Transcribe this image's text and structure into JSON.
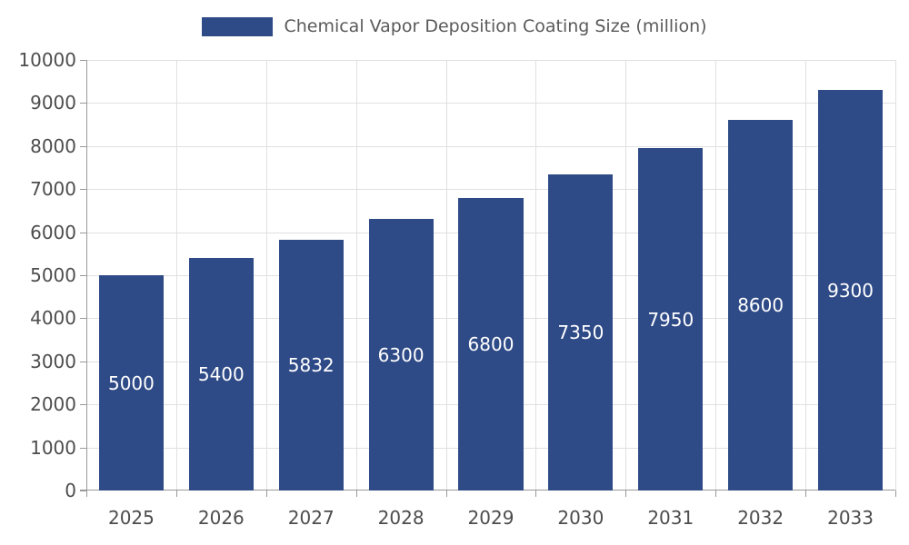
{
  "legend": {
    "label": "Chemical Vapor Deposition Coating Size (million)"
  },
  "colors": {
    "bar": "#2f4b87",
    "grid": "#e0e0e0",
    "axis": "#999999",
    "tick_text": "#4d4d4d",
    "legend_text": "#5a5a5a",
    "bar_label": "#ffffff",
    "background": "#ffffff"
  },
  "chart_data": {
    "type": "bar",
    "title": "Chemical Vapor Deposition Coating Size (million)",
    "categories": [
      "2025",
      "2026",
      "2027",
      "2028",
      "2029",
      "2030",
      "2031",
      "2032",
      "2033"
    ],
    "values": [
      5000,
      5400,
      5832,
      6300,
      6800,
      7350,
      7950,
      8600,
      9300
    ],
    "xlabel": "",
    "ylabel": "",
    "ylim": [
      0,
      10000
    ],
    "yticks": [
      0,
      1000,
      2000,
      3000,
      4000,
      5000,
      6000,
      7000,
      8000,
      9000,
      10000
    ],
    "grid": true,
    "legend_position": "top",
    "value_labels": "inside-center"
  }
}
